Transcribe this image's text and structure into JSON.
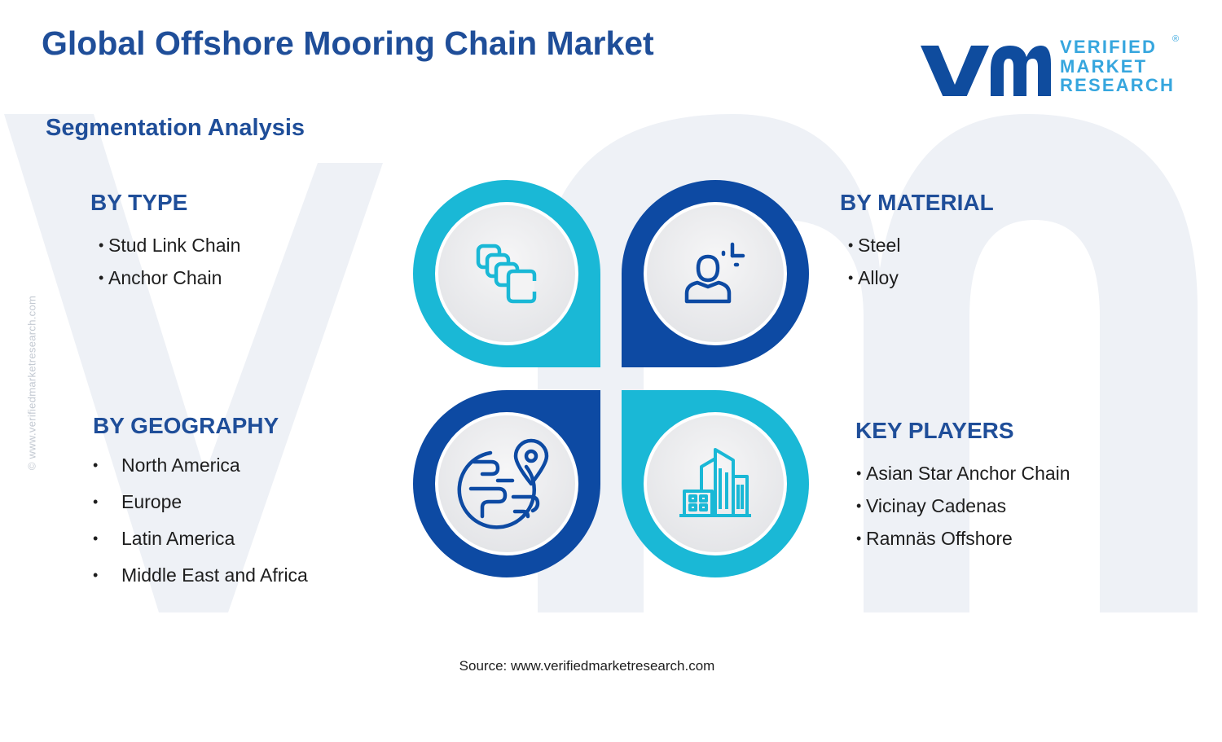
{
  "page": {
    "title": "Global Offshore Mooring Chain Market",
    "subtitle": "Segmentation Analysis",
    "source": "Source: www.verifiedmarketresearch.com",
    "side_credit": "© www.verifiedmarketresearch.com"
  },
  "logo": {
    "line1": "VERIFIED",
    "line2": "MARKET",
    "line3": "RESEARCH",
    "registered": "®"
  },
  "segments": {
    "type": {
      "heading": "BY TYPE",
      "items": [
        "Stud Link Chain",
        "Anchor Chain"
      ],
      "icon": "chain-links-icon"
    },
    "material": {
      "heading": "BY MATERIAL",
      "items": [
        "Steel",
        "Alloy"
      ],
      "icon": "user-analysis-icon"
    },
    "geography": {
      "heading": "BY GEOGRAPHY",
      "items": [
        "North America",
        "Europe",
        "Latin America",
        "Middle East and Africa"
      ],
      "icon": "globe-pin-icon"
    },
    "players": {
      "heading": "KEY PLAYERS",
      "items": [
        "Asian Star Anchor Chain",
        "Vicinay Cadenas",
        "Ramnäs Offshore"
      ],
      "icon": "buildings-icon"
    }
  },
  "colors": {
    "title": "#1f4e99",
    "cyan": "#1ab8d6",
    "navy": "#0d4aa3",
    "logo_navy": "#0f4c9e",
    "logo_light": "#36a6de",
    "watermark": "#eef1f6"
  }
}
